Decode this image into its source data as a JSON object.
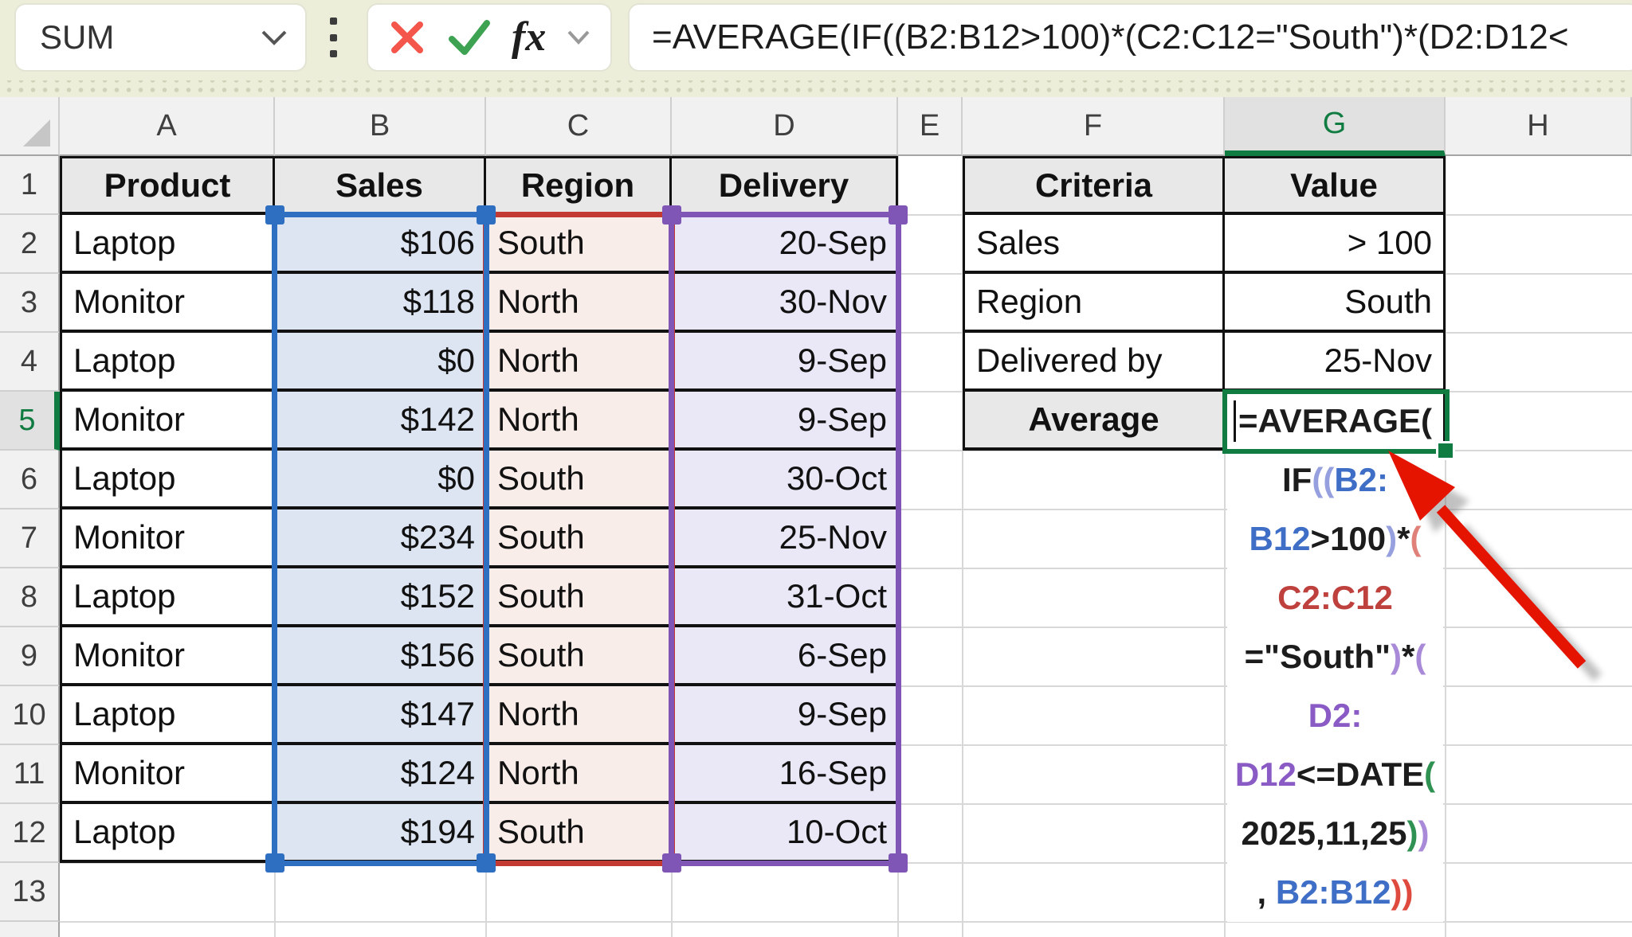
{
  "name_box": {
    "value": "SUM"
  },
  "toolbar": {
    "fx_label": "fx"
  },
  "formula_bar": {
    "text": "=AVERAGE(IF((B2:B12>100)*(C2:C12=\"South\")*(D2:D12<"
  },
  "grid": {
    "columns": [
      "A",
      "B",
      "C",
      "D",
      "E",
      "F",
      "G",
      "H"
    ],
    "rows": [
      "1",
      "2",
      "3",
      "4",
      "5",
      "6",
      "7",
      "8",
      "9",
      "10",
      "11",
      "12",
      "13"
    ],
    "active_column": "G",
    "active_row": "5",
    "active_cell": "G5"
  },
  "sales_table": {
    "headers": [
      "Product",
      "Sales",
      "Region",
      "Delivery"
    ],
    "rows": [
      [
        "Laptop",
        "$106",
        "South",
        "20-Sep"
      ],
      [
        "Monitor",
        "$118",
        "North",
        "30-Nov"
      ],
      [
        "Laptop",
        "$0",
        "North",
        "9-Sep"
      ],
      [
        "Monitor",
        "$142",
        "North",
        "9-Sep"
      ],
      [
        "Laptop",
        "$0",
        "South",
        "30-Oct"
      ],
      [
        "Monitor",
        "$234",
        "South",
        "25-Nov"
      ],
      [
        "Laptop",
        "$152",
        "South",
        "31-Oct"
      ],
      [
        "Monitor",
        "$156",
        "South",
        "6-Sep"
      ],
      [
        "Laptop",
        "$147",
        "North",
        "9-Sep"
      ],
      [
        "Monitor",
        "$124",
        "North",
        "16-Sep"
      ],
      [
        "Laptop",
        "$194",
        "South",
        "10-Oct"
      ]
    ]
  },
  "criteria_table": {
    "headers": [
      "Criteria",
      "Value"
    ],
    "rows": [
      [
        "Sales",
        "> 100"
      ],
      [
        "Region",
        "South"
      ],
      [
        "Delivered by",
        "25-Nov"
      ],
      [
        "Average",
        ""
      ]
    ]
  },
  "cell_edit": {
    "cell": "G5",
    "lines": [
      [
        [
          "=AVERAGE(",
          "k"
        ]
      ],
      [
        [
          "IF",
          "k"
        ],
        [
          "((",
          "pp"
        ],
        [
          "B2:",
          "b"
        ]
      ],
      [
        [
          "B12",
          "b"
        ],
        [
          ">",
          "k"
        ],
        [
          "100",
          "k"
        ],
        [
          ")",
          "pp"
        ],
        [
          "*",
          "k"
        ],
        [
          "(",
          "sa"
        ]
      ],
      [
        [
          "C2:C12",
          "r"
        ]
      ],
      [
        [
          "=\"South\"",
          "k"
        ],
        [
          ")",
          "lp"
        ],
        [
          "*",
          "k"
        ],
        [
          "(",
          "lp"
        ]
      ],
      [
        [
          "D2:",
          "p"
        ]
      ],
      [
        [
          "D12",
          "p"
        ],
        [
          "<=",
          "k"
        ],
        [
          "DATE",
          "k"
        ],
        [
          "(",
          "g"
        ]
      ],
      [
        [
          "2025,11,25",
          "k"
        ],
        [
          ")",
          "g"
        ],
        [
          ")",
          "lp"
        ]
      ],
      [
        [
          ", ",
          "k"
        ],
        [
          "B2:B12",
          "b"
        ],
        [
          "))",
          "o"
        ]
      ]
    ]
  },
  "colors": {
    "token": {
      "k": "#1c1c1c",
      "b": "#3e6ec5",
      "r": "#bf413d",
      "p": "#8a5bc5",
      "pp": "#96a0de",
      "lp": "#a98ad8",
      "sa": "#e08179",
      "g": "#2f9152",
      "o": "#df4a3f"
    },
    "selection": {
      "sales_border": "#2f6fc1",
      "sales_fill": "#dee5f2",
      "region_border": "#c23a32",
      "region_fill": "#f9ede9",
      "delivery_border": "#7f55b5",
      "delivery_fill": "#eae8f6"
    },
    "active_cell_border": "#107c41",
    "header_fill": "#e8e8e8",
    "arrow": "#e51400",
    "cancel_icon": "#f4564c",
    "enter_icon": "#3da352"
  }
}
